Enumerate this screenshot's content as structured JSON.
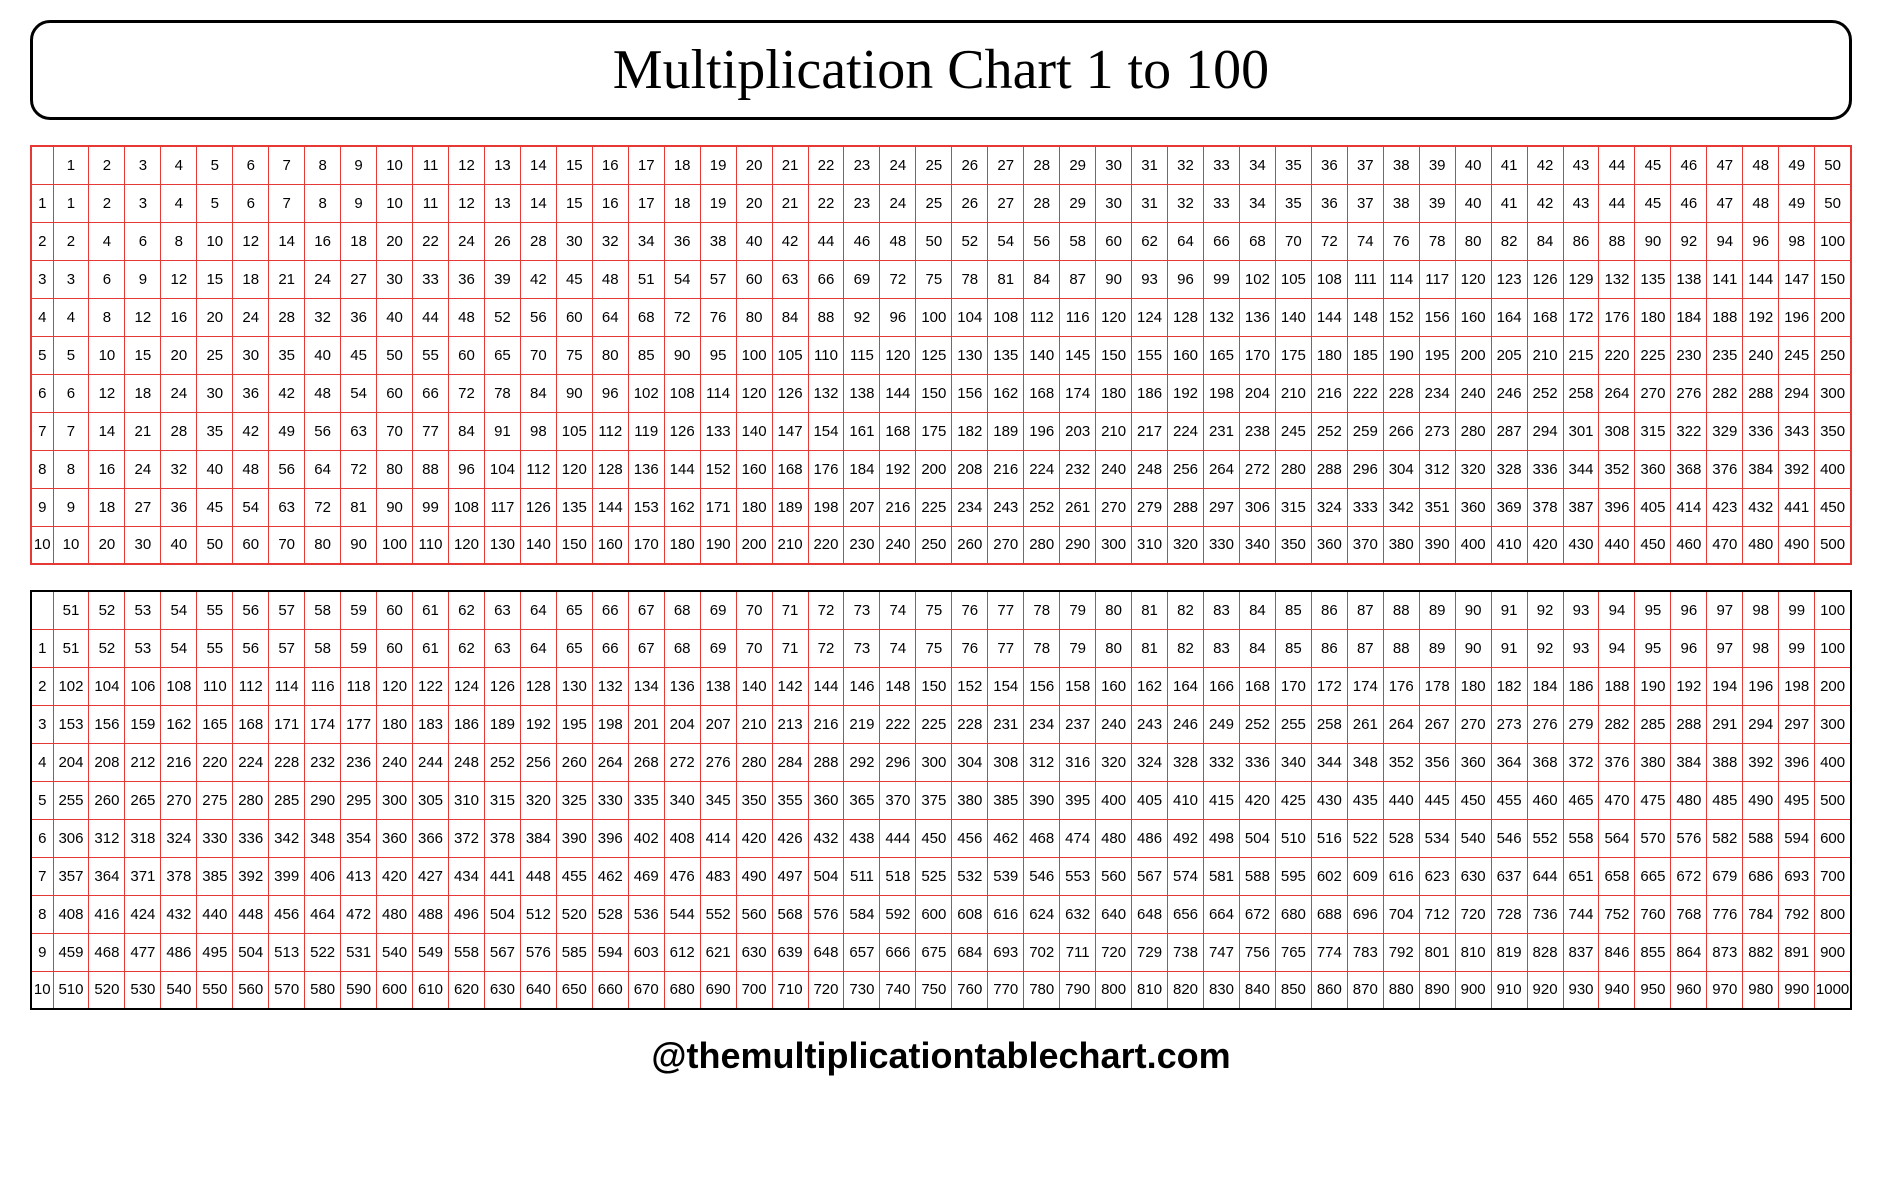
{
  "title": "Multiplication Chart 1 to 100",
  "footer": "@themultiplicationtablechart.com",
  "table1": {
    "col_start": 1,
    "col_end": 50,
    "row_start": 1,
    "row_end": 10,
    "outer_border_color": "#e63935",
    "cell_border_color": "#e63935"
  },
  "table2": {
    "col_start": 51,
    "col_end": 100,
    "row_start": 1,
    "row_end": 10,
    "outer_border_color": "#000000",
    "cell_border_color": "#e63935"
  },
  "style": {
    "title_fontsize": 56,
    "title_font": "Georgia, serif",
    "title_border_color": "#000000",
    "title_border_radius": 20,
    "cell_fontsize": 15,
    "cell_font": "Arial, sans-serif",
    "footer_fontsize": 36,
    "footer_fontweight": 700,
    "background_color": "#ffffff",
    "text_color": "#000000"
  }
}
